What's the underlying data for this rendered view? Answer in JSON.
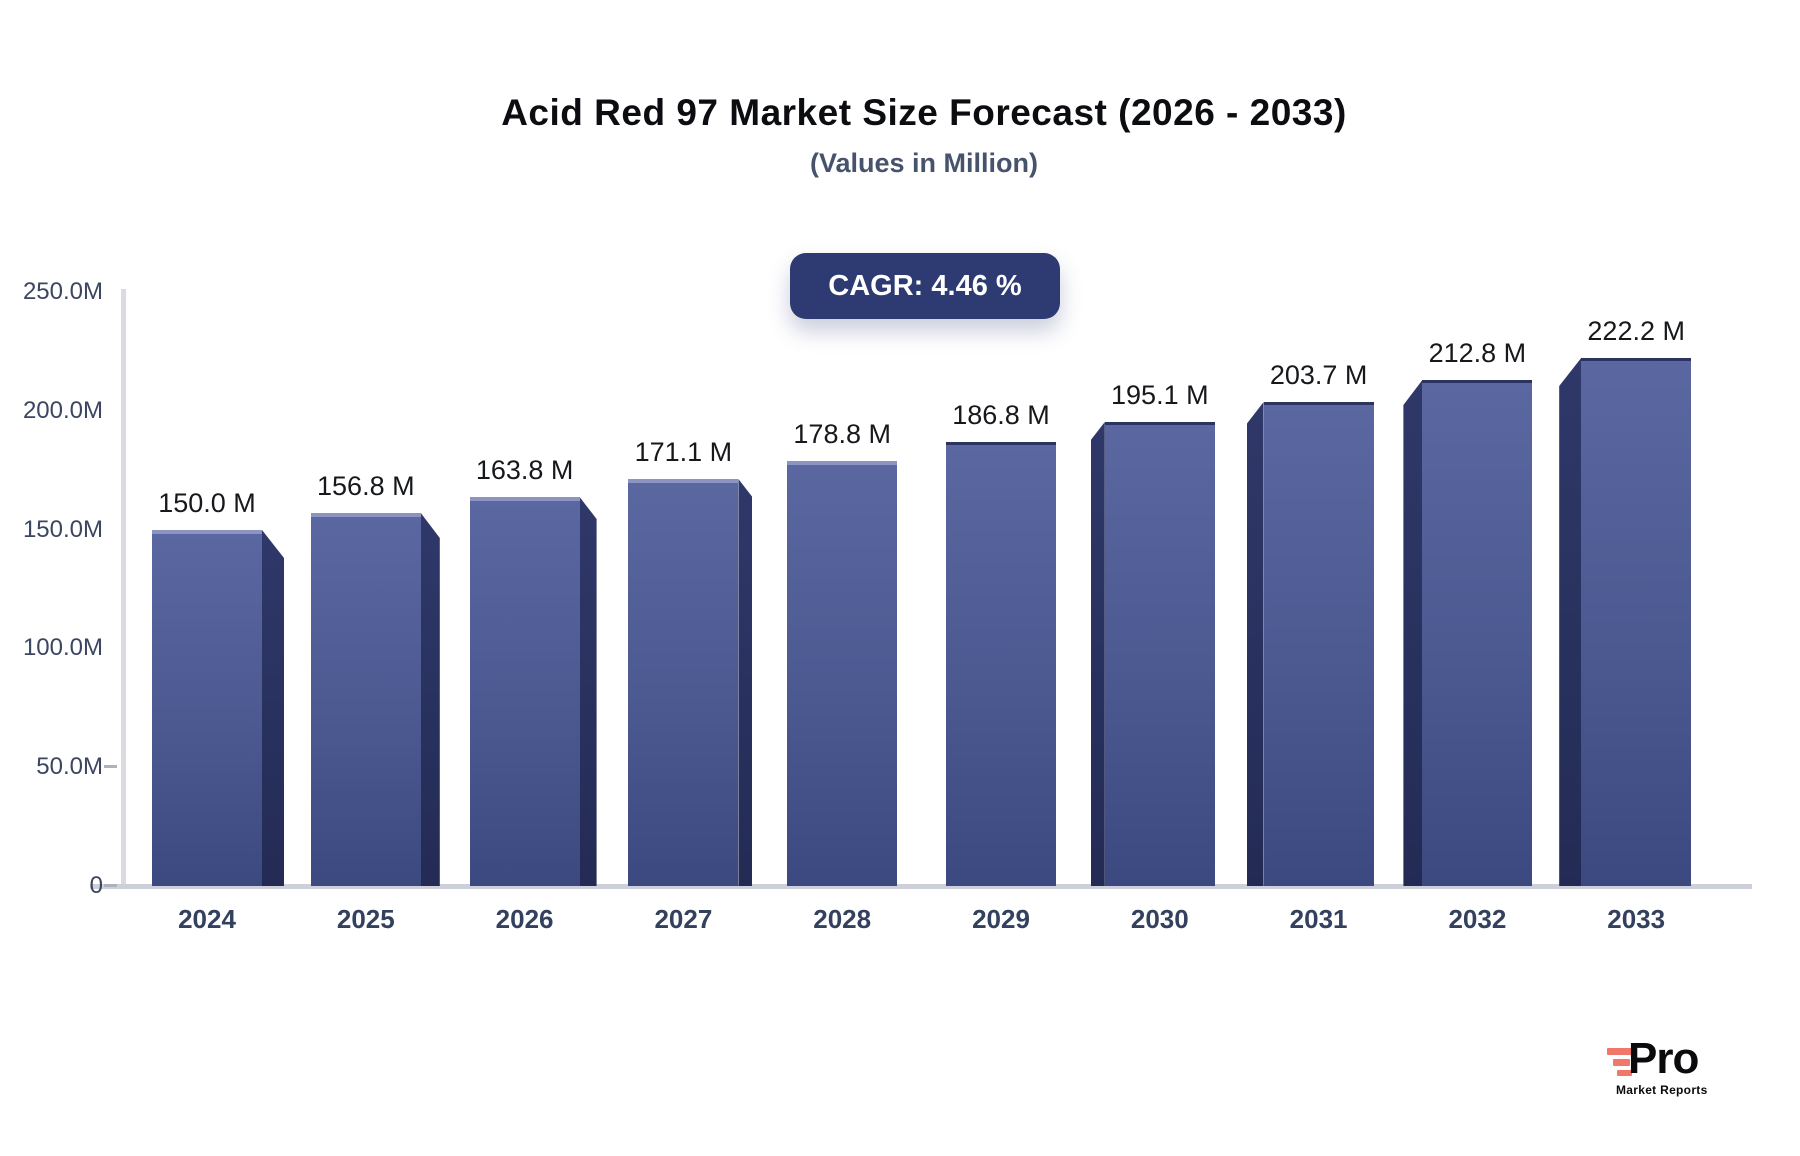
{
  "header": {
    "title": "Acid Red 97 Market Size Forecast (2026 - 2033)",
    "subtitle": "(Values in Million)"
  },
  "badge": {
    "label": "CAGR: 4.46 %",
    "bg_color": "#2e3b72",
    "text_color": "#ffffff"
  },
  "chart_data": {
    "type": "bar",
    "title": "Acid Red 97 Market Size Forecast (2026 - 2033)",
    "subtitle": "(Values in Million)",
    "cagr_label": "CAGR: 4.46 %",
    "categories": [
      "2024",
      "2025",
      "2026",
      "2027",
      "2028",
      "2029",
      "2030",
      "2031",
      "2032",
      "2033"
    ],
    "values": [
      150.0,
      156.8,
      163.8,
      171.1,
      178.8,
      186.8,
      195.1,
      203.7,
      212.8,
      222.2
    ],
    "value_labels": [
      "150.0 M",
      "156.8 M",
      "163.8 M",
      "171.1 M",
      "178.8 M",
      "186.8 M",
      "195.1 M",
      "203.7 M",
      "212.8 M",
      "222.2 M"
    ],
    "unit": "Million",
    "y_ticks": [
      "0",
      "50.0M",
      "100.0M",
      "150.0M",
      "200.0M",
      "250.0M"
    ],
    "y_tick_values": [
      0,
      50,
      100,
      150,
      200,
      250
    ],
    "ylim": [
      0,
      250
    ],
    "xlabel": "",
    "ylabel": "",
    "grid": false,
    "legend": "none",
    "bar_color_top": "#5a67a0",
    "bar_color_bottom": "#3c4980",
    "bar_side_color": "#2a3260",
    "bar_highlight_color": "#8c95c2"
  },
  "logo": {
    "name": "Pro",
    "tagline": "Market Reports",
    "accent_color": "#f2776b"
  }
}
